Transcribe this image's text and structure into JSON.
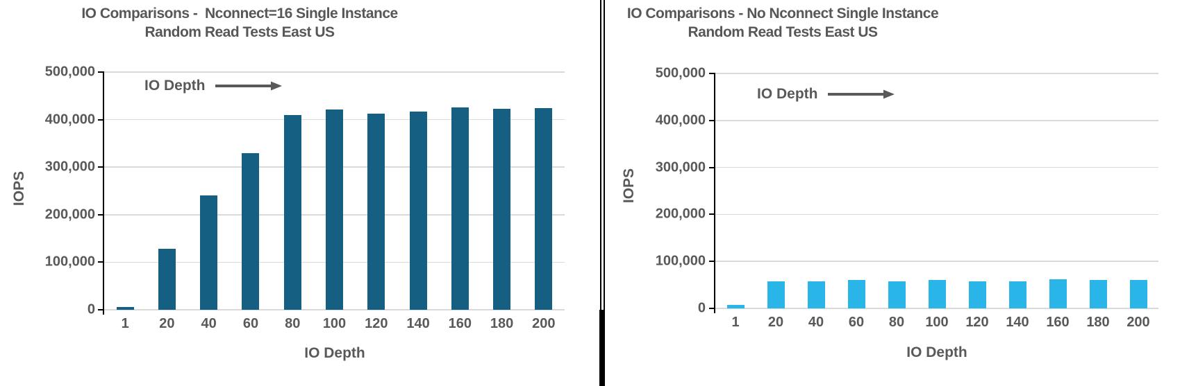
{
  "colors": {
    "background": "#ffffff",
    "title_text": "#575757",
    "axis_text": "#595959",
    "gridline": "#d9d9d9",
    "axis_line": "#000000",
    "divider": "#000000",
    "left_bar": "#156082",
    "right_bar": "#29b5e8"
  },
  "divider": {
    "style": "double thin line over plot area, solid bar below axis"
  },
  "chart_data": [
    {
      "type": "bar",
      "title": "IO Comparisons -  Nconnect=16 Single Instance\nRandom Read Tests East US",
      "categories": [
        "1",
        "20",
        "40",
        "60",
        "80",
        "100",
        "120",
        "140",
        "160",
        "180",
        "200"
      ],
      "values": [
        6000,
        129000,
        240000,
        330000,
        410000,
        422000,
        413000,
        417000,
        425000,
        423000,
        424000
      ],
      "xlabel": "IO Depth",
      "ylabel": "IOPS",
      "ylim": [
        0,
        500000
      ],
      "ytick_step": 100000,
      "ytick_labels": [
        "0",
        "100,000",
        "200,000",
        "300,000",
        "400,000",
        "500,000"
      ],
      "grid": true,
      "legend": "none",
      "bar_color": "#156082",
      "annotation": "IO Depth",
      "annotation_arrow": "right-arrow"
    },
    {
      "type": "bar",
      "title": "IO Comparisons - No Nconnect Single Instance\nRandom Read Tests East US",
      "categories": [
        "1",
        "20",
        "40",
        "60",
        "80",
        "100",
        "120",
        "140",
        "160",
        "180",
        "200"
      ],
      "values": [
        7000,
        57000,
        58000,
        61000,
        58000,
        61000,
        58000,
        58000,
        62000,
        60000,
        61000
      ],
      "xlabel": "IO Depth",
      "ylabel": "IOPS",
      "ylim": [
        0,
        500000
      ],
      "ytick_step": 100000,
      "ytick_labels": [
        "0",
        "100,000",
        "200,000",
        "300,000",
        "400,000",
        "500,000"
      ],
      "grid": true,
      "legend": "none",
      "bar_color": "#29b5e8",
      "annotation": "IO Depth",
      "annotation_arrow": "right-arrow"
    }
  ]
}
